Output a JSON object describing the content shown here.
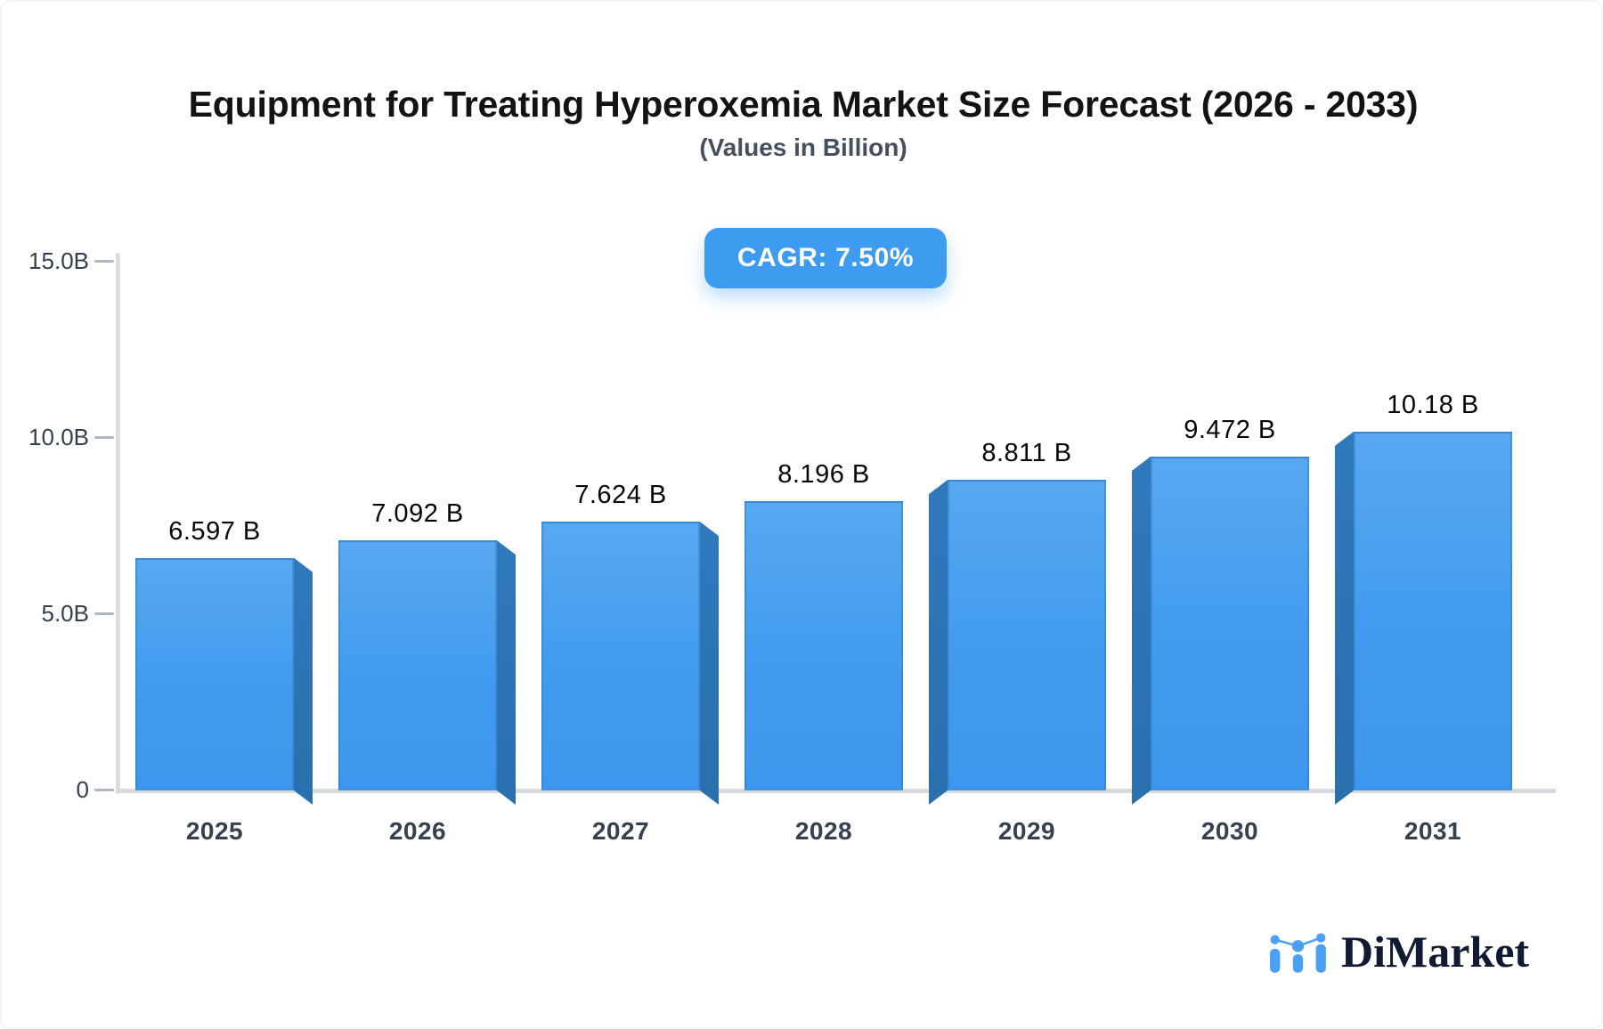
{
  "header": {
    "title": "Equipment for Treating Hyperoxemia Market Size Forecast (2026 - 2033)",
    "subtitle": "(Values in Billion)",
    "cagr_badge": "CAGR: 7.50%"
  },
  "chart_data": {
    "type": "bar",
    "title": "Equipment for Treating Hyperoxemia Market Size Forecast (2026 - 2033)",
    "subtitle": "(Values in Billion)",
    "cagr_percent": "7.50%",
    "unit": "Billion",
    "categories": [
      "2025",
      "2026",
      "2027",
      "2028",
      "2029",
      "2030",
      "2031"
    ],
    "values": [
      6.597,
      7.092,
      7.624,
      8.196,
      8.811,
      9.472,
      10.18
    ],
    "bar_labels": [
      "6.597 B",
      "7.092 B",
      "7.624 B",
      "8.196 B",
      "8.811 B",
      "9.472 B",
      "10.18 B"
    ],
    "y_axis": {
      "ticks": [
        {
          "label": "15.0B",
          "value": 15
        },
        {
          "label": "10.0B",
          "value": 10
        },
        {
          "label": "5.0B",
          "value": 5
        },
        {
          "label": "0",
          "value": 0
        }
      ],
      "ylim": [
        0,
        15
      ]
    },
    "legend": "none",
    "grid": "off",
    "style": "3d-perspective-bars",
    "colors": {
      "bar_face_top": "#57a8f1",
      "bar_face_bottom": "#3e97ee",
      "bar_side_shade": "#2c73b4",
      "badge_background": "#3d9bf0",
      "badge_text": "#ffffff",
      "axis_line": "#d9dde2",
      "tick_text": "#333f4e",
      "value_label_text": "#060606"
    }
  },
  "branding": {
    "name": "DiMarket",
    "icon": "dimarket-bar-chart-logo-icon"
  }
}
